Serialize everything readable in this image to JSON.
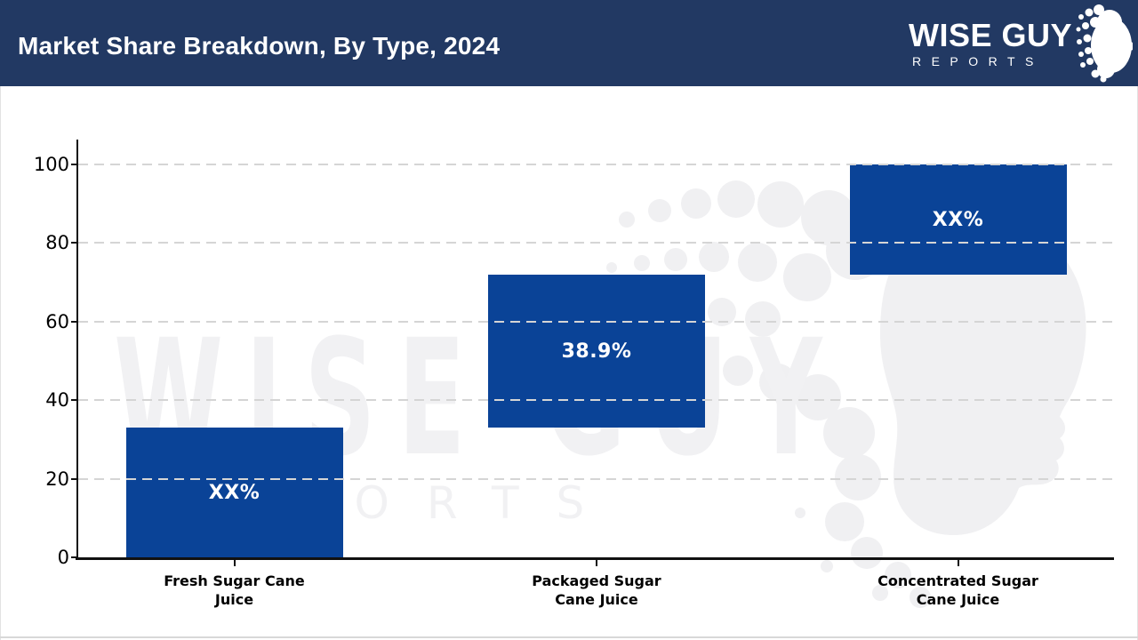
{
  "header": {
    "title": "Market Share Breakdown, By Type, 2024",
    "logo": {
      "line1": "WISE GUY",
      "line2": "REPORTS"
    },
    "bg_color": "#223963"
  },
  "watermark": {
    "line1": "WISE GUY",
    "line2": "REPORTS"
  },
  "colors": {
    "bar": "#0a4397",
    "gridline": "#d5d5d5",
    "axis": "#111111",
    "bar_label_text": "#ffffff",
    "watermark": "#f1f1f3",
    "header_bg": "#223963"
  },
  "chart_data": {
    "type": "bar",
    "subtype": "waterfall-segments",
    "title": "Market Share Breakdown, By Type, 2024",
    "categories": [
      "Fresh Sugar Cane Juice",
      "Packaged Sugar Cane Juice",
      "Concentrated Sugar Cane Juice"
    ],
    "bars": [
      {
        "category": "Fresh Sugar Cane Juice",
        "label_lines": [
          "Fresh Sugar Cane",
          "Juice"
        ],
        "start": 0,
        "end": 33.0,
        "value_label": "XX%"
      },
      {
        "category": "Packaged Sugar Cane Juice",
        "label_lines": [
          "Packaged Sugar",
          "Cane Juice"
        ],
        "start": 33.0,
        "end": 71.9,
        "value_label": "38.9%"
      },
      {
        "category": "Concentrated Sugar Cane Juice",
        "label_lines": [
          "Concentrated Sugar",
          "Cane Juice"
        ],
        "start": 71.9,
        "end": 100,
        "value_label": "XX%"
      }
    ],
    "xlabel": "",
    "ylabel": "",
    "yticks": [
      0,
      20,
      40,
      60,
      80,
      100
    ],
    "ylim": [
      0,
      106
    ],
    "grid": "horizontal-dashed",
    "legend": "none"
  }
}
